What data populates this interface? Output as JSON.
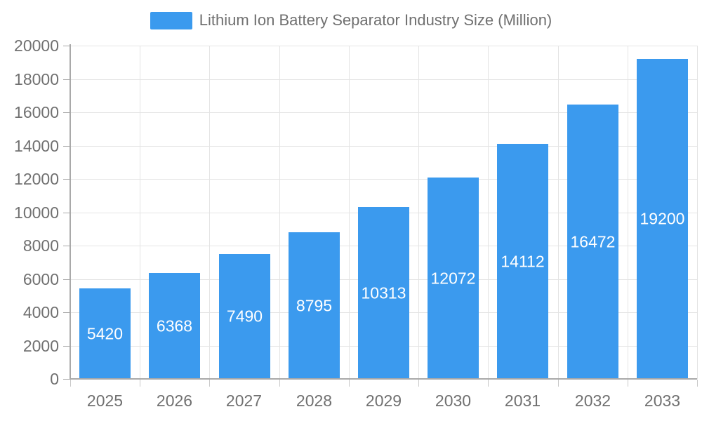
{
  "legend": {
    "label": "Lithium Ion Battery Separator Industry Size (Million)"
  },
  "chart_data": {
    "type": "bar",
    "title": "Lithium Ion Battery Separator Industry Size (Million)",
    "categories": [
      "2025",
      "2026",
      "2027",
      "2028",
      "2029",
      "2030",
      "2031",
      "2032",
      "2033"
    ],
    "values": [
      5420,
      6368,
      7490,
      8795,
      10313,
      12072,
      14112,
      16472,
      19200
    ],
    "xlabel": "",
    "ylabel": "",
    "ylim": [
      0,
      20000
    ],
    "ytick_step": 2000,
    "ytick_labels": [
      "0",
      "2000",
      "4000",
      "6000",
      "8000",
      "10000",
      "12000",
      "14000",
      "16000",
      "18000",
      "20000"
    ],
    "grid": true,
    "legend_position": "top",
    "bar_labels_inside": true
  },
  "colors": {
    "bar": "#3b9aee",
    "bar_label": "#ffffff",
    "axis_text": "#707070",
    "axis_line": "#a9a9a9",
    "boundary_tick": "#c9c9c9",
    "grid_line": "#e4e4e4",
    "background": "#ffffff"
  }
}
